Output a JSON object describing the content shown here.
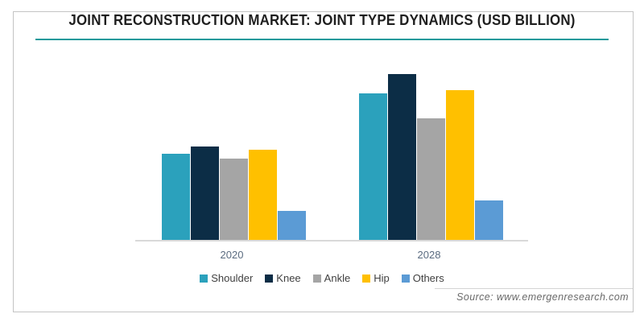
{
  "title": "JOINT RECONSTRUCTION MARKET: JOINT TYPE DYNAMICS (USD BILLION)",
  "source": "Source: www.emergenresearch.com",
  "accent": {
    "title_underline_color": "#18999b",
    "frame_border_color": "#c4c4c4",
    "axis_line_color": "#d9d9d9"
  },
  "chart_data": {
    "type": "bar",
    "title": "JOINT RECONSTRUCTION MARKET: JOINT TYPE DYNAMICS (USD BILLION)",
    "categories": [
      "2020",
      "2028"
    ],
    "series": [
      {
        "name": "Shoulder",
        "color": "#2ba1bc",
        "values": [
          10.7,
          18.2
        ]
      },
      {
        "name": "Knee",
        "color": "#0c2d46",
        "values": [
          11.6,
          20.6
        ]
      },
      {
        "name": "Ankle",
        "color": "#a5a5a5",
        "values": [
          10.1,
          15.1
        ]
      },
      {
        "name": "Hip",
        "color": "#ffc000",
        "values": [
          11.2,
          18.6
        ]
      },
      {
        "name": "Others",
        "color": "#5b9bd5",
        "values": [
          3.6,
          4.9
        ]
      }
    ],
    "xlabel": "",
    "ylabel": "",
    "ylim": [
      0,
      23
    ],
    "grid": false,
    "y_axis_shown": false,
    "value_labels_shown": false,
    "legend_position": "bottom"
  }
}
